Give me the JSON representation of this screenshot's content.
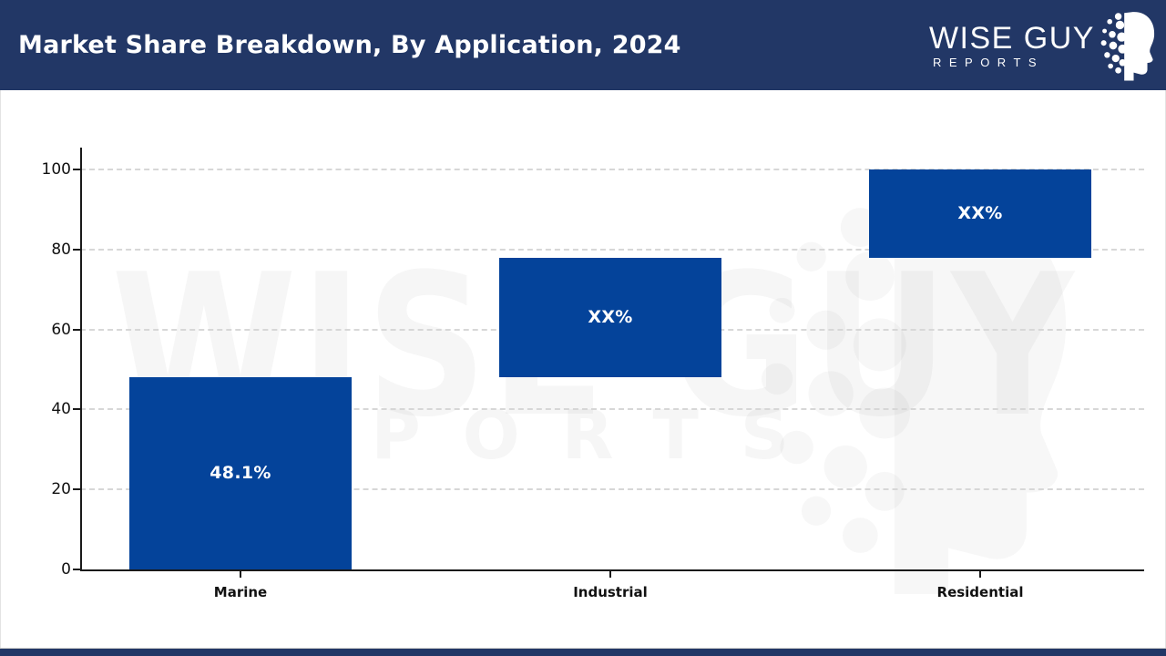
{
  "header": {
    "title": "Market Share Breakdown, By Application, 2024",
    "bg_color": "#223766",
    "logo": {
      "line1": "WISE GUY",
      "line2": "REPORTS"
    }
  },
  "watermark": {
    "line1": "WISE GUY",
    "line2": "REPORTS"
  },
  "chart_data": {
    "type": "bar",
    "subtype": "waterfall",
    "title": "Market Share Breakdown, By Application, 2024",
    "categories": [
      "Marine",
      "Industrial",
      "Residential"
    ],
    "segments": [
      {
        "category": "Marine",
        "start": 0,
        "end": 48.1,
        "label": "48.1%"
      },
      {
        "category": "Industrial",
        "start": 48.1,
        "end": 78,
        "label": "XX%"
      },
      {
        "category": "Residential",
        "start": 78,
        "end": 100,
        "label": "XX%"
      }
    ],
    "y_ticks": [
      0,
      20,
      40,
      60,
      80,
      100
    ],
    "ylim": [
      0,
      105
    ],
    "xlabel": "",
    "ylabel": "",
    "grid": "horizontal-dashed",
    "legend": "none",
    "bar_color": "#04439a",
    "axis_color": "#1a1a1a",
    "grid_color": "#d7d7d7"
  }
}
